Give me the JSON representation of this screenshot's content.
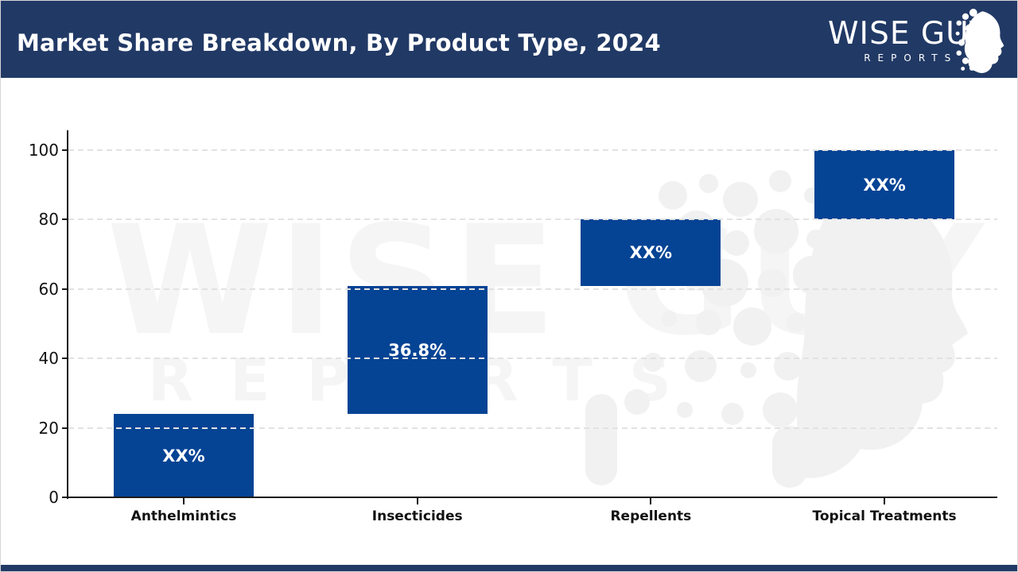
{
  "header": {
    "title": "Market Share Breakdown, By Product Type, 2024",
    "logo": {
      "line1": "WISE GUY",
      "line2": "REPORTS"
    }
  },
  "watermark": {
    "line1": "WISE GUY",
    "line2": "REPORTS"
  },
  "colors": {
    "header_bg": "#213965",
    "bar": "#054394",
    "grid": "#e2e2e2",
    "axis": "#1a1a1a",
    "watermark": "#f5f5f5"
  },
  "chart_data": {
    "type": "bar",
    "subtype": "waterfall",
    "title": "Market Share Breakdown, By Product Type, 2024",
    "categories": [
      "Anthelmintics",
      "Insecticides",
      "Repellents",
      "Topical Treatments"
    ],
    "values": [
      24,
      36.8,
      19.2,
      20
    ],
    "cumulative_ends": [
      24,
      60.8,
      80,
      100
    ],
    "bar_labels": [
      "XX%",
      "36.8%",
      "XX%",
      "XX%"
    ],
    "ylim": [
      0,
      100
    ],
    "yticks": [
      0,
      20,
      40,
      60,
      80,
      100
    ],
    "xlabel": "",
    "ylabel": "",
    "legend": "none",
    "grid": "horizontal-dashed",
    "bar_color": "#054394"
  }
}
